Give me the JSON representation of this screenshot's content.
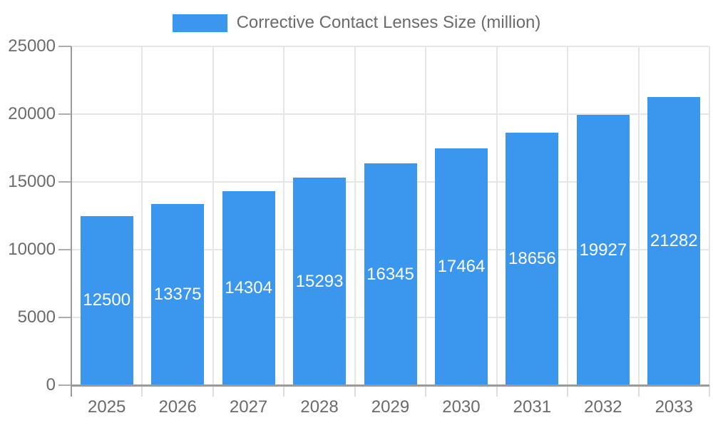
{
  "chart_data": {
    "type": "bar",
    "title": "",
    "legend_label": "Corrective Contact Lenses Size (million)",
    "legend_position": "top",
    "categories": [
      "2025",
      "2026",
      "2027",
      "2028",
      "2029",
      "2030",
      "2031",
      "2032",
      "2033"
    ],
    "series": [
      {
        "name": "Corrective Contact Lenses Size (million)",
        "values": [
          12500,
          13375,
          14304,
          15293,
          16345,
          17464,
          18656,
          19927,
          21282
        ]
      }
    ],
    "value_labels": {
      "position": "inside-center",
      "color": "#FFFFFF"
    },
    "xlabel": "",
    "ylabel": "",
    "ylim": [
      0,
      25000
    ],
    "yticks": [
      0,
      5000,
      10000,
      15000,
      20000,
      25000
    ],
    "grid": true,
    "colors": {
      "bar": "#3B97EE",
      "axis_text": "#6B6B6B",
      "grid_line": "#E6E6E6",
      "axis_line": "#9A9A9A",
      "y_tick": "#ADADAD",
      "x_tick": "#DDDDDD",
      "value_label": "#FFFFFF",
      "background": "#FFFFFF"
    }
  }
}
